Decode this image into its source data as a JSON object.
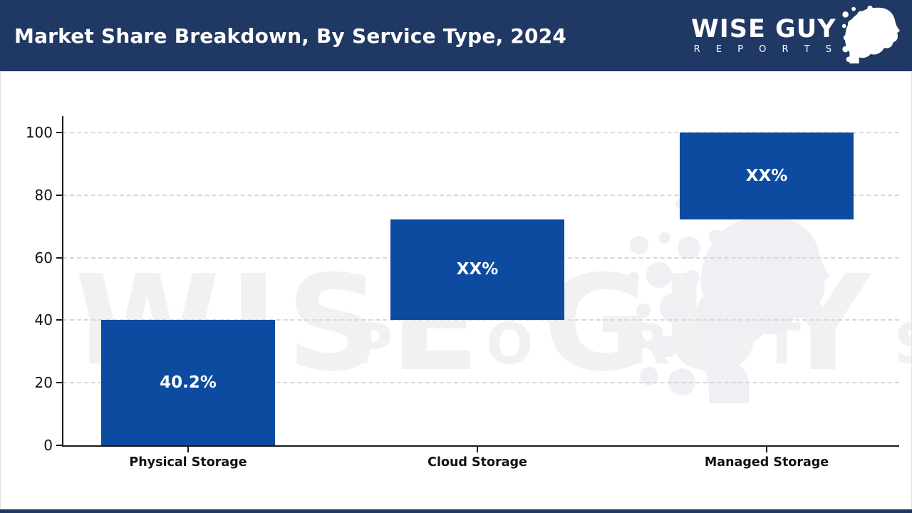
{
  "header": {
    "title": "Market Share Breakdown, By Service Type, 2024",
    "logo": {
      "line1": "WISE GUY",
      "line2": "R E P O R T S"
    }
  },
  "watermark": {
    "line1": "WISE GUY",
    "line2": "R E P O R T S"
  },
  "chart_data": {
    "type": "bar",
    "subtype": "floating-segment-breakdown",
    "title": "Market Share Breakdown, By Service Type, 2024",
    "categories": [
      "Physical Storage",
      "Cloud Storage",
      "Managed Storage"
    ],
    "series": [
      {
        "name": "Market share",
        "segments": [
          {
            "category": "Physical Storage",
            "start": 0,
            "end": 40.2,
            "label": "40.2%"
          },
          {
            "category": "Cloud Storage",
            "start": 40.2,
            "end": 72.3,
            "label": "XX%"
          },
          {
            "category": "Managed Storage",
            "start": 72.3,
            "end": 100,
            "label": "XX%"
          }
        ]
      }
    ],
    "xlabel": "",
    "ylabel": "",
    "ylim": [
      0,
      100
    ],
    "yticks": [
      0,
      20,
      40,
      60,
      80,
      100
    ],
    "grid": "horizontal-dashed",
    "legend": "none",
    "bar_color": "#0c4ba0",
    "bar_label_color": "#ffffff"
  },
  "colors": {
    "header_bg": "#203864",
    "bar": "#0c4ba0",
    "grid": "#d8d8d8",
    "axis": "#1a1a1a",
    "watermark": "#f0f1f3"
  }
}
